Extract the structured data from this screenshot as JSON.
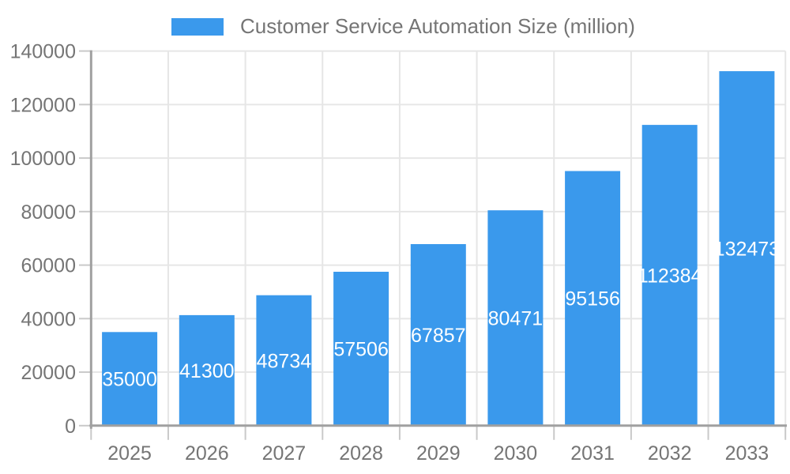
{
  "legend": {
    "label": "Customer Service Automation Size (million)"
  },
  "chart_data": {
    "type": "bar",
    "title": "Customer Service Automation Size (million)",
    "xlabel": "",
    "ylabel": "",
    "categories": [
      "2025",
      "2026",
      "2027",
      "2028",
      "2029",
      "2030",
      "2031",
      "2032",
      "2033"
    ],
    "series": [
      {
        "name": "Customer Service Automation Size (million)",
        "values": [
          35000,
          41300,
          48734,
          57506,
          67857,
          80471,
          95156,
          112384,
          132473
        ]
      }
    ],
    "ylim": [
      0,
      140000
    ],
    "yticks": [
      0,
      20000,
      40000,
      60000,
      80000,
      100000,
      120000,
      140000
    ],
    "grid": true,
    "legend_position": "top",
    "bar_labels_inside": "middle",
    "colors": {
      "bar": "#3A99EC",
      "bar_label": "#FFFFFF",
      "axis_label": "#757575",
      "grid": "#E6E6E6",
      "tick": "#C9C9C9",
      "axis_line": "#A0A0A0"
    }
  }
}
